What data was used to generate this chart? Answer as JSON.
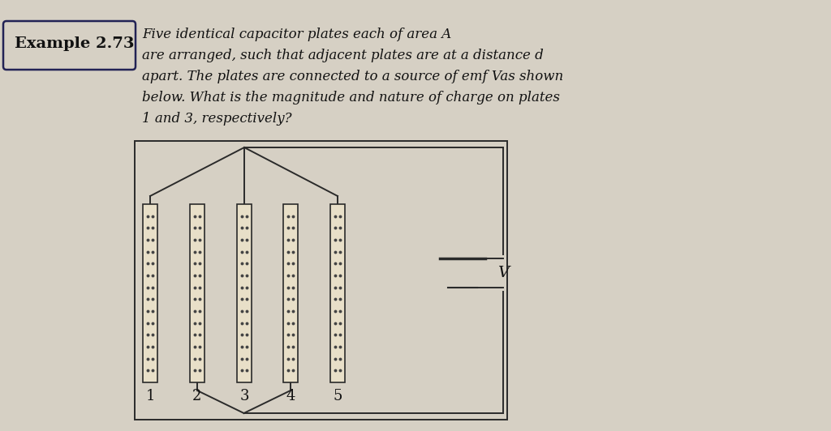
{
  "bg_color": "#d6d0c4",
  "text_color": "#111111",
  "title_text": "Example 2.73",
  "body_line1": "Five identical capacitor plates each of area A",
  "body_line2": "are arranged, such that adjacent plates are at a distance d",
  "body_line3": "apart. The plates are connected to a source of emf Vas shown",
  "body_line4": "below. What is the magnitude and nature of charge on plates",
  "body_line5": "1 and 3, respectively?",
  "plate_labels": [
    "1",
    "2",
    "3",
    "4",
    "5"
  ],
  "plate_color": "#e8dfc8",
  "plate_edge_color": "#2a2a2a",
  "wire_color": "#2a2a2a",
  "V_label": "V",
  "fig_width": 10.24,
  "fig_height": 5.32,
  "dpi": 100
}
